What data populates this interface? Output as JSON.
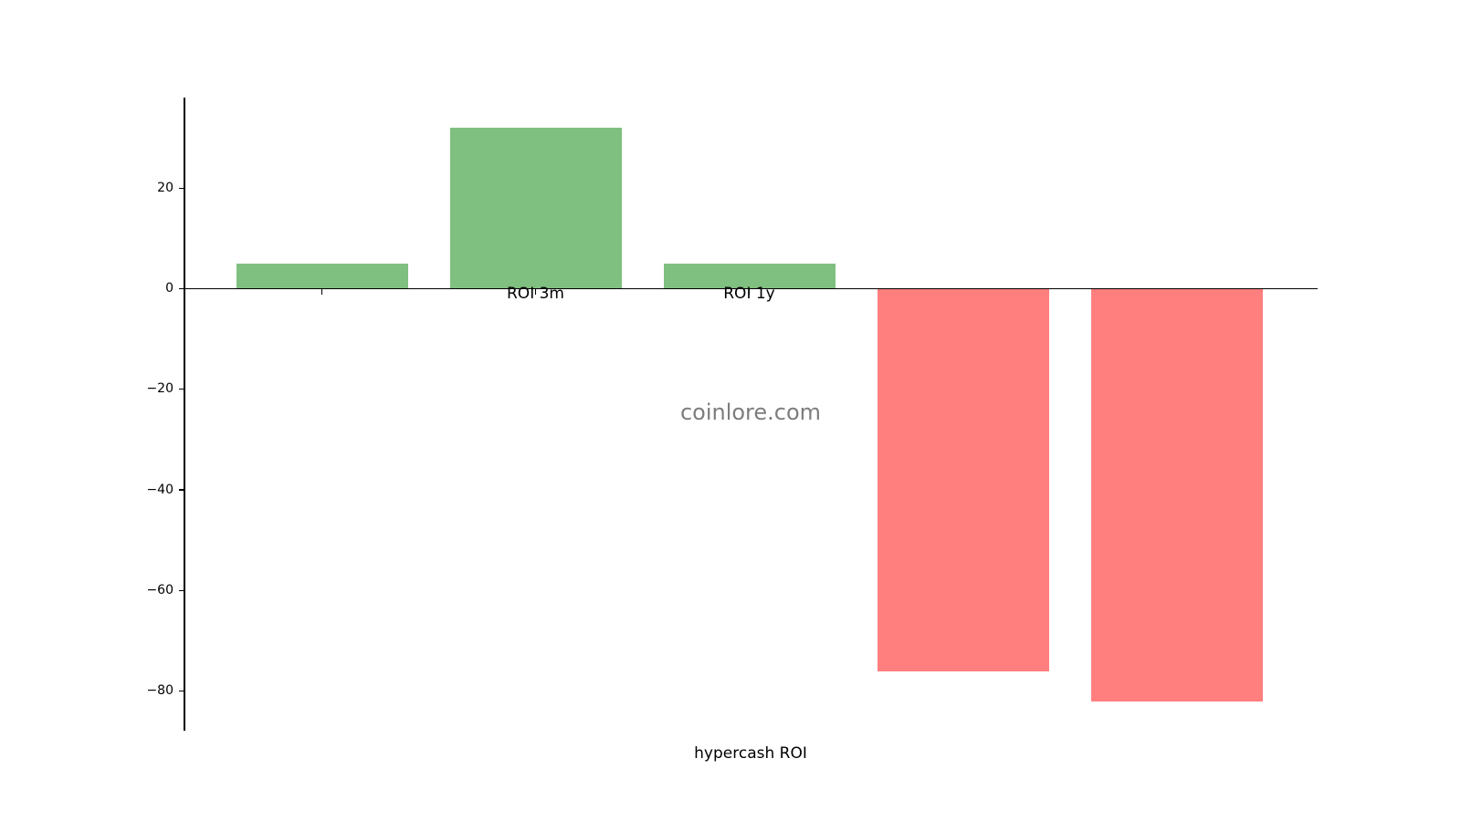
{
  "watermark": "coinlore.com",
  "colors": {
    "positive_bar": "#7fbf7f",
    "negative_bar": "#ff7f7f",
    "axis": "#000000",
    "watermark_gray": "#7d7d7d",
    "background": "#ffffff"
  },
  "chart_data": {
    "type": "bar",
    "title": "hypercash ROI",
    "xlabel": "hypercash ROI",
    "ylabel": "",
    "categories": [
      "",
      "ROI 3m",
      "ROI 1y",
      "",
      ""
    ],
    "values": [
      5,
      32,
      5,
      -76,
      -82
    ],
    "bar_colors": [
      "#7fbf7f",
      "#7fbf7f",
      "#7fbf7f",
      "#ff7f7f",
      "#ff7f7f"
    ],
    "yticks": [
      20,
      0,
      -20,
      -40,
      -60,
      -80
    ],
    "ylim": [
      -88,
      38
    ],
    "grid": false,
    "legend": null,
    "annotations": [
      "coinlore.com"
    ]
  }
}
